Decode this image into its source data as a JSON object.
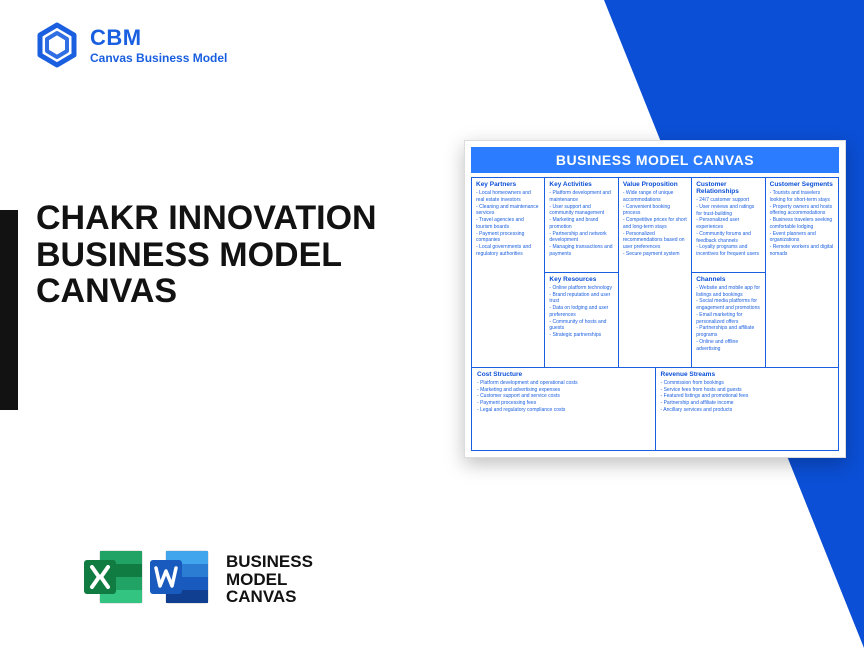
{
  "colors": {
    "brand_blue": "#1a5fe0",
    "deep_blue": "#0b4fd6",
    "black": "#121212",
    "excel_green_dark": "#107c41",
    "excel_green_light": "#21a366",
    "word_blue_dark": "#1651ab",
    "word_blue_mid": "#2b7cd3",
    "word_blue_light": "#41a5ee",
    "white": "#ffffff",
    "grid_border": "#1a5fe0",
    "card_border": "#dcdcdc"
  },
  "logo": {
    "brand": "CBM",
    "tagline": "Canvas Business Model",
    "brand_color": "#1a5fe0",
    "tag_color": "#1a5fe0"
  },
  "main_title": {
    "text": "CHAKR INNOVATION BUSINESS MODEL CANVAS",
    "fontsize": 34,
    "color": "#121212"
  },
  "accent_bar_color": "#121212",
  "bmc_label": {
    "line1": "BUSINESS",
    "line2": "MODEL",
    "line3": "CANVAS",
    "fontsize": 17,
    "color": "#121212"
  },
  "canvas": {
    "title": "BUSINESS MODEL CANVAS",
    "title_bg": "#2b7cff",
    "title_fontsize": 14,
    "cell_title_color": "#0b4fd6",
    "item_color": "#1a5fe0",
    "sections": {
      "key_partners": {
        "title": "Key Partners",
        "items": [
          "Local homeowners and real estate investors",
          "Cleaning and maintenance services",
          "Travel agencies and tourism boards",
          "Payment processing companies",
          "Local governments and regulatory authorities"
        ]
      },
      "key_activities": {
        "title": "Key Activities",
        "items": [
          "Platform development and maintenance",
          "User support and community management",
          "Marketing and brand promotion",
          "Partnership and network development",
          "Managing transactions and payments"
        ]
      },
      "key_resources": {
        "title": "Key Resources",
        "items": [
          "Online platform technology",
          "Brand reputation and user trust",
          "Data on lodging and user preferences",
          "Community of hosts and guests",
          "Strategic partnerships"
        ]
      },
      "value_proposition": {
        "title": "Value Proposition",
        "items": [
          "Wide range of unique accommodations",
          "Convenient booking process",
          "Competitive prices for short and long-term stays",
          "Personalized recommendations based on user preferences",
          "Secure payment system"
        ]
      },
      "customer_relationships": {
        "title": "Customer Relationships",
        "items": [
          "24/7 customer support",
          "User reviews and ratings for trust-building",
          "Personalized user experiences",
          "Community forums and feedback channels",
          "Loyalty programs and incentives for frequent users"
        ]
      },
      "channels": {
        "title": "Channels",
        "items": [
          "Website and mobile app for listings and bookings",
          "Social media platforms for engagement and promotions",
          "Email marketing for personalized offers",
          "Partnerships and affiliate programs",
          "Online and offline advertising"
        ]
      },
      "customer_segments": {
        "title": "Customer Segments",
        "items": [
          "Tourists and travelers looking for short-term stays",
          "Property owners and hosts offering accommodations",
          "Business travelers seeking comfortable lodging",
          "Event planners and organizations",
          "Remote workers and digital nomads"
        ]
      },
      "cost_structure": {
        "title": "Cost Structure",
        "items": [
          "Platform development and operational costs",
          "Marketing and advertising expenses",
          "Customer support and service costs",
          "Payment processing fees",
          "Legal and regulatory compliance costs"
        ]
      },
      "revenue_streams": {
        "title": "Revenue Streams",
        "items": [
          "Commission from bookings",
          "Service fees from hosts and guests",
          "Featured listings and promotional fees",
          "Partnership and affiliate income",
          "Ancillary services and products"
        ]
      }
    }
  }
}
